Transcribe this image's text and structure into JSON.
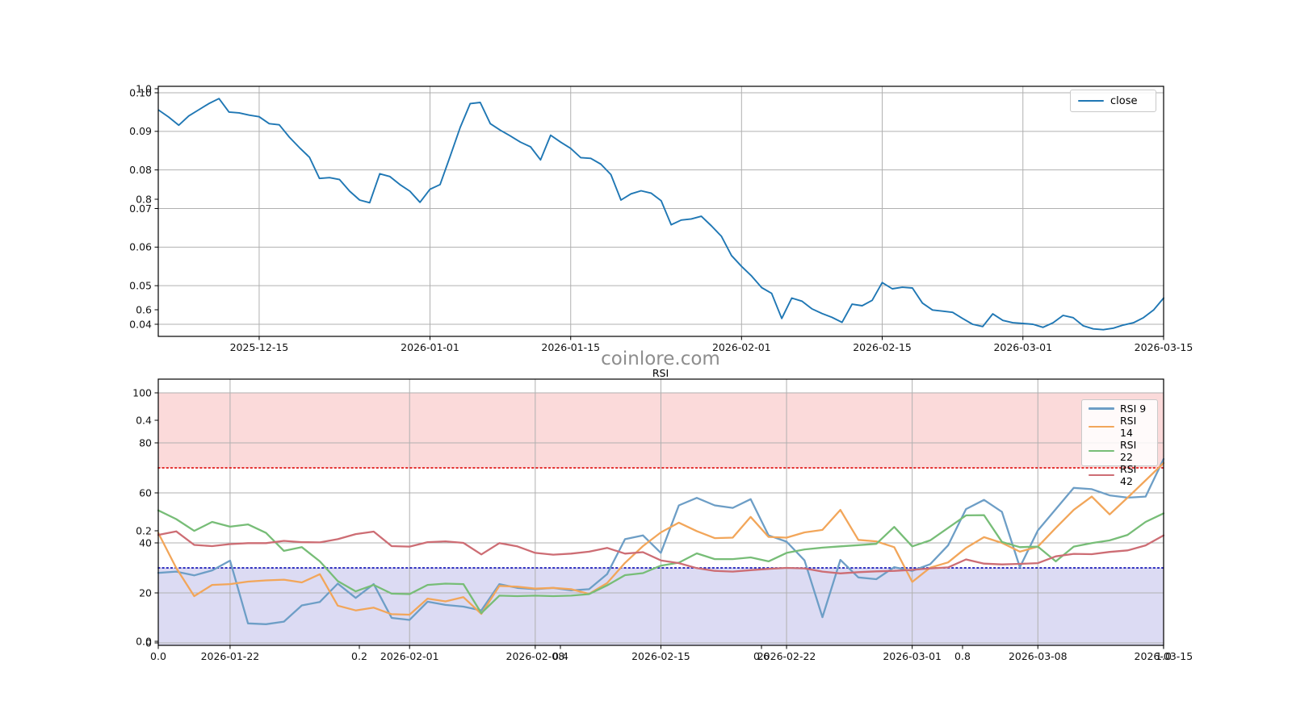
{
  "watermark": "coinlore.com",
  "colors": {
    "background": "#ffffff",
    "grid": "#b0b0b0",
    "spine": "#000000",
    "tick_text": "#111111",
    "watermark": "#8d8d8d",
    "legend_border": "#c9c9c9"
  },
  "overlay_axis": {
    "x_ticks": [
      "0.0",
      "0.2",
      "0.4",
      "0.6",
      "0.8",
      "1.0"
    ],
    "y_ticks": [
      "0.0",
      "0.2",
      "0.4",
      "0.6",
      "0.8",
      "1.0"
    ]
  },
  "chart_data": [
    {
      "id": "price",
      "type": "line",
      "title": "",
      "xlabel": "",
      "ylabel": "",
      "legend_position": "upper right",
      "grid": true,
      "x_start_date": "2025-12-05",
      "x_tick_labels": [
        {
          "label": "2025-12-15",
          "day": 10
        },
        {
          "label": "2026-01-01",
          "day": 27
        },
        {
          "label": "2026-01-15",
          "day": 41
        },
        {
          "label": "2026-02-01",
          "day": 58
        },
        {
          "label": "2026-02-15",
          "day": 72
        },
        {
          "label": "2026-03-01",
          "day": 86
        },
        {
          "label": "2026-03-15",
          "day": 100
        }
      ],
      "y_tick_labels": [
        "0.10",
        "0.09",
        "0.08",
        "0.07",
        "0.06",
        "0.05",
        "0.04"
      ],
      "ylim": [
        0.0369,
        0.1017
      ],
      "series": [
        {
          "name": "close",
          "color": "#1f77b4",
          "values": [
            0.0955,
            0.0937,
            0.0916,
            0.094,
            0.0956,
            0.0972,
            0.0985,
            0.095,
            0.0948,
            0.0942,
            0.0938,
            0.092,
            0.0917,
            0.0885,
            0.0858,
            0.0833,
            0.0778,
            0.078,
            0.0775,
            0.0745,
            0.0722,
            0.0715,
            0.079,
            0.0783,
            0.0762,
            0.0745,
            0.0716,
            0.075,
            0.0762,
            0.0835,
            0.091,
            0.0972,
            0.0975,
            0.092,
            0.0903,
            0.0888,
            0.0872,
            0.086,
            0.0826,
            0.089,
            0.0872,
            0.0856,
            0.0832,
            0.083,
            0.0815,
            0.0788,
            0.0722,
            0.0738,
            0.0746,
            0.074,
            0.072,
            0.0658,
            0.067,
            0.0673,
            0.068,
            0.0655,
            0.0628,
            0.0578,
            0.055,
            0.0525,
            0.0495,
            0.048,
            0.0415,
            0.0468,
            0.046,
            0.044,
            0.0428,
            0.0418,
            0.0405,
            0.0452,
            0.0448,
            0.0462,
            0.0508,
            0.0492,
            0.0496,
            0.0494,
            0.0455,
            0.0437,
            0.0434,
            0.0431,
            0.0415,
            0.04,
            0.0394,
            0.0427,
            0.041,
            0.0404,
            0.0402,
            0.04,
            0.0392,
            0.0404,
            0.0423,
            0.0417,
            0.0396,
            0.0388,
            0.0386,
            0.039,
            0.0398,
            0.0404,
            0.0417,
            0.0437,
            0.0468
          ]
        }
      ]
    },
    {
      "id": "rsi",
      "type": "line",
      "title": "RSI",
      "xlabel": "",
      "ylabel": "",
      "legend_position": "upper right",
      "grid": true,
      "x_start_date": "2026-01-18",
      "x_tick_labels": [
        {
          "label": "2026-01-22",
          "day": 4
        },
        {
          "label": "2026-02-01",
          "day": 14
        },
        {
          "label": "2026-02-08",
          "day": 21
        },
        {
          "label": "2026-02-15",
          "day": 28
        },
        {
          "label": "2026-02-22",
          "day": 35
        },
        {
          "label": "2026-03-01",
          "day": 42
        },
        {
          "label": "2026-03-08",
          "day": 49
        },
        {
          "label": "2026-03-15",
          "day": 56
        }
      ],
      "y_tick_labels": [
        "0",
        "20",
        "40",
        "60",
        "80",
        "100"
      ],
      "ylim": [
        -1,
        105.5
      ],
      "bands": [
        {
          "name": "overbought-zone",
          "from": 70,
          "to": 100,
          "color": "#fbdada"
        },
        {
          "name": "oversold-zone",
          "from": -1,
          "to": 30,
          "color": "#dcdbf3"
        }
      ],
      "thresholds": [
        {
          "name": "overbought-line",
          "value": 70,
          "color": "#e01a1a"
        },
        {
          "name": "oversold-line",
          "value": 30,
          "color": "#1717b8"
        }
      ],
      "series": [
        {
          "name": "RSI 9",
          "color": "#6d9ec6",
          "values": [
            28.0,
            28.5,
            27.0,
            29.0,
            32.9,
            7.8,
            7.5,
            8.5,
            15.0,
            16.4,
            23.7,
            18.0,
            23.5,
            10.0,
            9.2,
            16.5,
            15.2,
            14.5,
            13.0,
            23.5,
            22.0,
            21.5,
            22.0,
            21.0,
            21.5,
            27.5,
            41.5,
            43.0,
            36.0,
            55.0,
            58.0,
            55.0,
            54.0,
            57.5,
            43.0,
            40.5,
            33.0,
            10.3,
            33.2,
            26.2,
            25.5,
            30.3,
            28.8,
            31.5,
            39.0,
            53.5,
            57.2,
            52.4,
            30.3,
            45.0,
            53.5,
            62.0,
            61.5,
            59.0,
            58.1,
            58.5,
            73.5
          ]
        },
        {
          "name": "RSI 14",
          "color": "#f2a65a",
          "values": [
            44.0,
            30.0,
            18.7,
            23.2,
            23.5,
            24.5,
            25.0,
            25.3,
            24.2,
            27.5,
            14.9,
            13.0,
            14.1,
            11.5,
            11.3,
            17.7,
            16.6,
            18.3,
            11.6,
            22.8,
            22.5,
            21.7,
            22.0,
            21.5,
            19.6,
            23.9,
            32.0,
            38.7,
            44.2,
            48.1,
            44.7,
            41.9,
            42.1,
            50.4,
            42.4,
            42.1,
            44.2,
            45.2,
            53.2,
            41.2,
            40.6,
            38.3,
            24.4,
            30.1,
            32.2,
            38.0,
            42.3,
            40.0,
            36.5,
            38.5,
            46.0,
            53.2,
            58.5,
            51.4,
            58.1,
            65.0,
            71.9
          ]
        },
        {
          "name": "RSI 22",
          "color": "#77bd77",
          "values": [
            53.0,
            49.5,
            44.8,
            48.4,
            46.5,
            47.4,
            44.0,
            36.8,
            38.3,
            32.6,
            24.7,
            20.6,
            23.2,
            19.7,
            19.5,
            23.2,
            23.7,
            23.5,
            11.9,
            18.9,
            18.7,
            18.9,
            18.7,
            18.9,
            19.5,
            23.0,
            27.1,
            27.9,
            30.9,
            32.1,
            35.8,
            33.5,
            33.5,
            34.2,
            32.6,
            36.0,
            37.4,
            38.1,
            38.6,
            39.1,
            39.6,
            46.4,
            38.6,
            41.0,
            46.0,
            51.0,
            51.1,
            40.4,
            38.3,
            38.5,
            32.6,
            38.5,
            39.9,
            41.0,
            43.2,
            48.4,
            51.8
          ]
        },
        {
          "name": "RSI 42",
          "color": "#cd6d74",
          "values": [
            43.2,
            44.6,
            39.2,
            38.7,
            39.5,
            39.9,
            39.9,
            40.8,
            40.3,
            40.2,
            41.5,
            43.5,
            44.5,
            38.7,
            38.5,
            40.3,
            40.6,
            40.0,
            35.4,
            39.9,
            38.6,
            36.0,
            35.3,
            35.7,
            36.5,
            38.0,
            35.7,
            36.3,
            33.0,
            31.9,
            29.9,
            28.8,
            28.5,
            29.1,
            29.6,
            30.0,
            29.8,
            28.5,
            27.8,
            28.3,
            28.6,
            28.8,
            29.2,
            29.8,
            30.2,
            33.4,
            31.7,
            31.4,
            31.6,
            31.9,
            34.6,
            35.6,
            35.5,
            36.4,
            37.0,
            39.0,
            43.0
          ]
        }
      ]
    }
  ]
}
